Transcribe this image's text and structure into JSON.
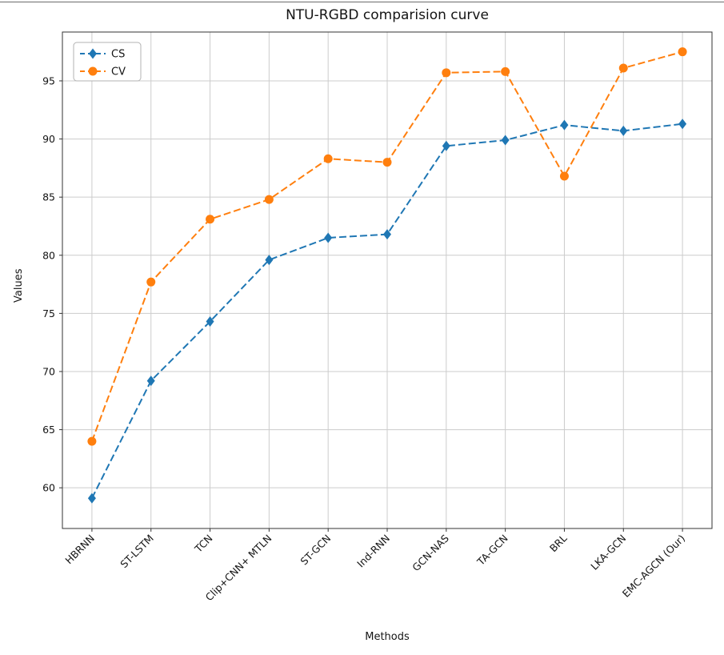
{
  "chart_data": {
    "type": "line",
    "title": "NTU-RGBD comparision curve",
    "xlabel": "Methods",
    "ylabel": "Values",
    "categories": [
      "HBRNN",
      "ST-LSTM",
      "TCN",
      "Clip+CNN+ MTLN",
      "ST-GCN",
      "Ind-RNN",
      "GCN-NAS",
      "TA-GCN",
      "BRL",
      "LKA-GCN",
      "EMC-AGCN (Our)"
    ],
    "series": [
      {
        "name": "CS",
        "color": "#1f77b4",
        "marker": "diamond",
        "line_style": "dashed",
        "values": [
          59.1,
          69.2,
          74.3,
          79.6,
          81.5,
          81.8,
          89.4,
          89.9,
          91.2,
          90.7,
          91.3
        ]
      },
      {
        "name": "CV",
        "color": "#ff7f0e",
        "marker": "circle",
        "line_style": "dashed",
        "values": [
          64.0,
          77.7,
          83.1,
          84.8,
          88.3,
          88.0,
          95.7,
          95.8,
          86.8,
          96.1,
          97.5
        ]
      }
    ],
    "ylim": [
      56.5,
      99.2
    ],
    "yticks": [
      60,
      65,
      70,
      75,
      80,
      85,
      90,
      95
    ],
    "grid": true,
    "grid_color": "#cccccc",
    "spine_color": "#333333",
    "legend_position": "upper-left"
  }
}
